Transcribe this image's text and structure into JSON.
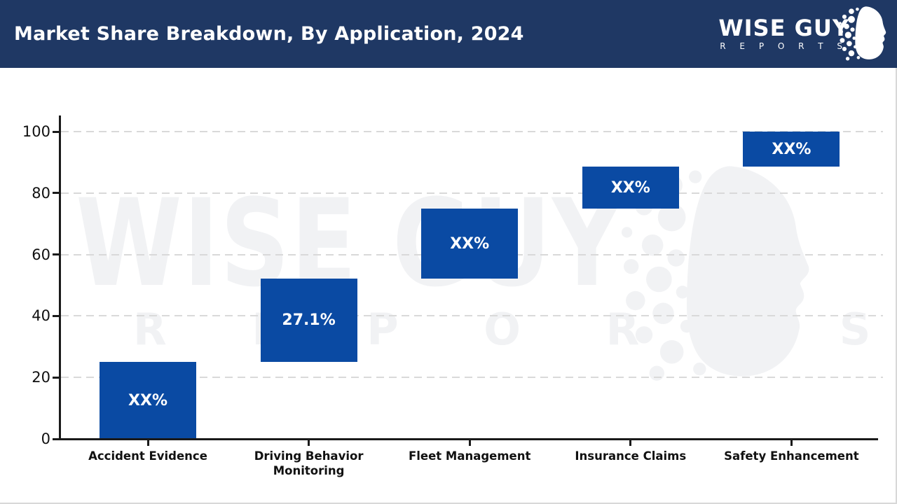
{
  "header": {
    "title": "Market Share Breakdown, By Application, 2024",
    "logo": {
      "line1": "WISE GUY",
      "line2": "R E P O R T S",
      "icon": "dotted-face-profile-icon"
    }
  },
  "watermark": {
    "line1": "WISE GUY",
    "line2": "R E P O R T S",
    "icon": "dotted-face-profile-icon"
  },
  "chart_data": {
    "type": "bar",
    "subtype": "floating-waterfall",
    "title": "Market Share Breakdown, By Application, 2024",
    "categories": [
      "Accident Evidence",
      "Driving Behavior Monitoring",
      "Fleet Management",
      "Insurance Claims",
      "Safety Enhancement"
    ],
    "bars": [
      {
        "category": "Accident Evidence",
        "label": "XX%",
        "start": 0,
        "end": 25
      },
      {
        "category": "Driving Behavior Monitoring",
        "label": "27.1%",
        "start": 25,
        "end": 52.1
      },
      {
        "category": "Fleet Management",
        "label": "XX%",
        "start": 52.1,
        "end": 75
      },
      {
        "category": "Insurance Claims",
        "label": "XX%",
        "start": 75,
        "end": 88.5
      },
      {
        "category": "Safety Enhancement",
        "label": "XX%",
        "start": 88.5,
        "end": 100
      }
    ],
    "xlabel": "",
    "ylabel": "",
    "ylim": [
      0,
      100
    ],
    "yticks": [
      0,
      20,
      40,
      60,
      80,
      100
    ],
    "grid": "horizontal-dashed",
    "legend": "none"
  },
  "colors": {
    "header_bg": "#1f3864",
    "bar": "#0a4aa3",
    "grid": "#d9d9d9",
    "axis": "#1a1a1a",
    "watermark": "#f1f2f4",
    "title_text": "#ffffff",
    "bar_label_text": "#ffffff"
  }
}
